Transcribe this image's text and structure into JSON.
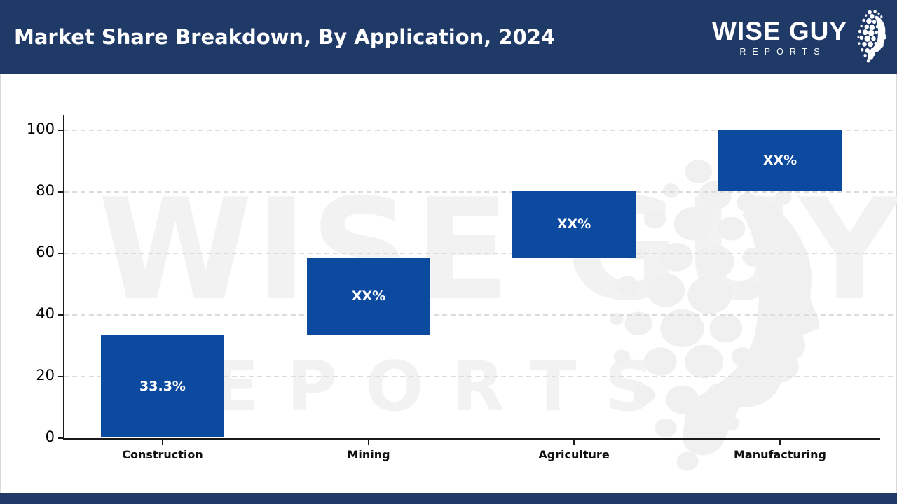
{
  "header": {
    "title": "Market Share Breakdown, By Application, 2024",
    "logo": {
      "primary": "WISE GUY",
      "secondary": "REPORTS"
    }
  },
  "watermark": {
    "primary": "WISE GUY",
    "secondary": "REPORTS"
  },
  "chart_data": {
    "type": "bar",
    "subtype": "waterfall",
    "title": "Market Share Breakdown, By Application, 2024",
    "categories": [
      "Construction",
      "Mining",
      "Agriculture",
      "Manufacturing"
    ],
    "segments": [
      {
        "category": "Construction",
        "start": 0,
        "end": 33.3,
        "label": "33.3%"
      },
      {
        "category": "Mining",
        "start": 33.3,
        "end": 58.6,
        "label": "XX%"
      },
      {
        "category": "Agriculture",
        "start": 58.6,
        "end": 80.2,
        "label": "XX%"
      },
      {
        "category": "Manufacturing",
        "start": 80.2,
        "end": 100,
        "label": "XX%"
      }
    ],
    "y_ticks": [
      0,
      20,
      40,
      60,
      80,
      100
    ],
    "ylim": [
      0,
      105
    ],
    "xlabel": "",
    "ylabel": "",
    "grid": "horizontal-dashed",
    "legend": "none",
    "bar_color": "#0c4aa0",
    "bar_label_color": "#ffffff"
  },
  "colors": {
    "header_bg": "#203a68",
    "footer_bg": "#203a68",
    "axis": "#1a1a1a",
    "gridline": "#dcdcdc",
    "watermark": "#f2f2f2"
  }
}
